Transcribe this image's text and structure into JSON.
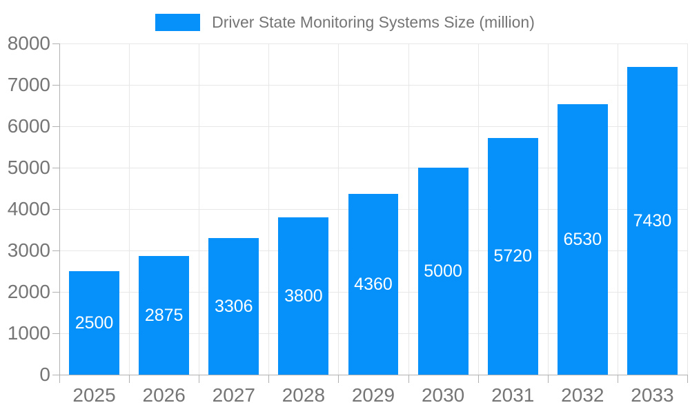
{
  "chart_data": {
    "type": "bar",
    "title": "Driver State Monitoring Systems Size (million)",
    "categories": [
      "2025",
      "2026",
      "2027",
      "2028",
      "2029",
      "2030",
      "2031",
      "2032",
      "2033"
    ],
    "values": [
      2500,
      2875,
      3306,
      3800,
      4360,
      5000,
      5720,
      6530,
      7430
    ],
    "xlabel": "",
    "ylabel": "",
    "ylim": [
      0,
      8000
    ],
    "ytick_step": 1000,
    "ytick_labels": [
      "0",
      "1000",
      "2000",
      "3000",
      "4000",
      "5000",
      "6000",
      "7000",
      "8000"
    ],
    "grid": "horizontal-and-vertical",
    "legend_position": "top-center",
    "bar_value_labels_shown": true
  },
  "colors": {
    "bar": "#0590fa",
    "bar_value_label": "#ffffff",
    "axis_label": "#757575",
    "legend_text": "#757575",
    "gridline": "#e7e7e7",
    "axis_line": "#b1b1b1",
    "background": "#ffffff"
  }
}
